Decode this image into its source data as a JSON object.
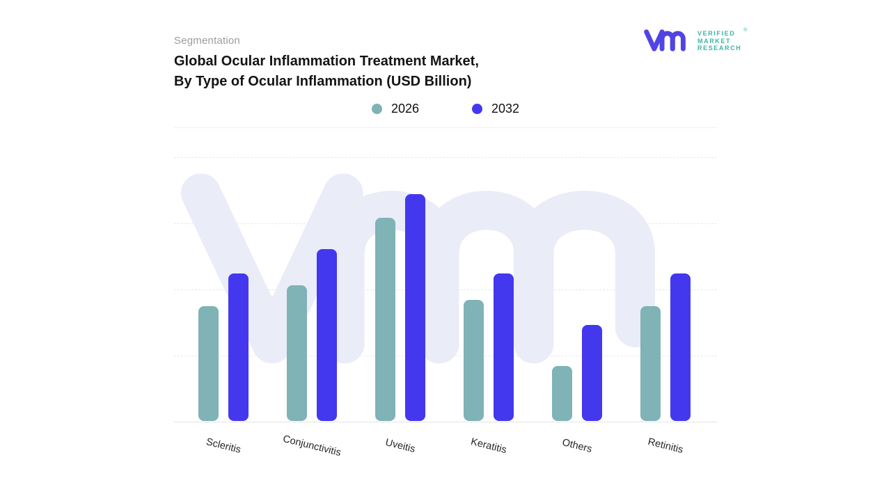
{
  "header": {
    "eyebrow": "Segmentation",
    "title_line1": "Global Ocular Inflammation Treatment Market,",
    "title_line2": "By Type of Ocular Inflammation (USD Billion)"
  },
  "logo": {
    "glyph": "vmr-monogram-icon",
    "glyph_color": "#5244e4",
    "brand_line1": "VERIFIED",
    "brand_line2": "MARKET",
    "brand_line3": "RESEARCH",
    "registered_mark": "®",
    "text_color": "#3bb4a9"
  },
  "legend": [
    {
      "label": "2026",
      "color": "#7fb3b6"
    },
    {
      "label": "2032",
      "color": "#4438ee"
    }
  ],
  "watermark": {
    "name": "vmr-monogram-watermark",
    "color": "#eaecf8"
  },
  "chart_data": {
    "type": "bar",
    "title": "Global Ocular Inflammation Treatment Market, By Type of Ocular Inflammation (USD Billion)",
    "categories": [
      "Scleritis",
      "Conjunctivitis",
      "Uveitis",
      "Keratitis",
      "Others",
      "Retinitis"
    ],
    "series": [
      {
        "name": "2026",
        "color": "#7fb3b6",
        "values": [
          1.74,
          2.05,
          3.07,
          1.83,
          0.83,
          1.74
        ]
      },
      {
        "name": "2032",
        "color": "#4438ee",
        "values": [
          2.23,
          2.6,
          3.43,
          2.23,
          1.45,
          2.23
        ]
      }
    ],
    "xlabel": "",
    "ylabel": "",
    "ylim": [
      0,
      4.4
    ],
    "y_axis_labels_visible": false,
    "grid": true,
    "gridline_values": [
      1,
      2,
      3,
      4
    ],
    "legend_position": "top-center"
  }
}
